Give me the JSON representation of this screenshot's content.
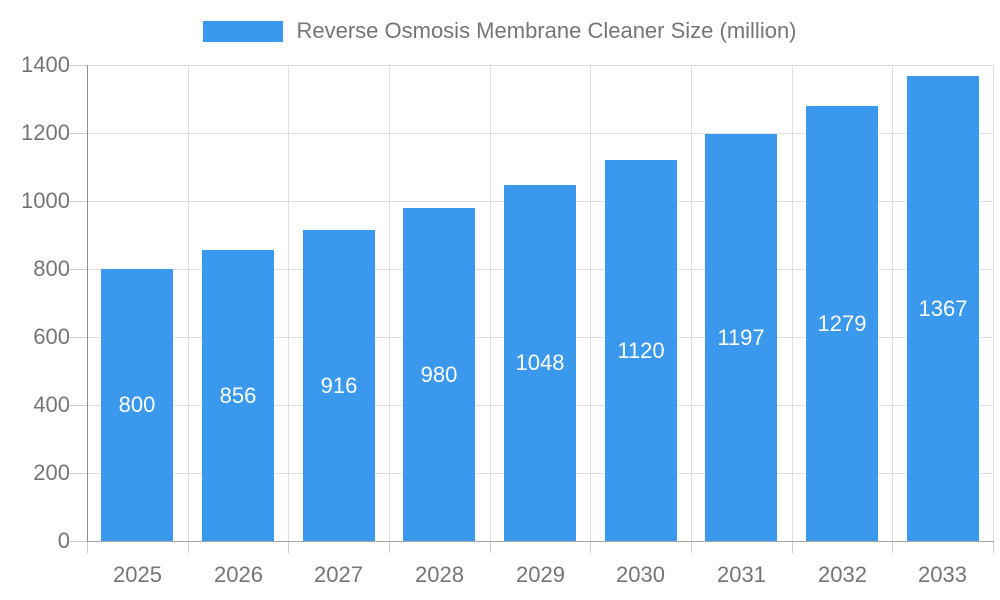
{
  "page": {
    "background": "#ffffff"
  },
  "legend": {
    "label": "Reverse Osmosis Membrane Cleaner Size (million)"
  },
  "chart_data": {
    "type": "bar",
    "title": "Reverse Osmosis Membrane Cleaner Size (million)",
    "categories": [
      "2025",
      "2026",
      "2027",
      "2028",
      "2029",
      "2030",
      "2031",
      "2032",
      "2033"
    ],
    "values": [
      800,
      856,
      916,
      980,
      1048,
      1120,
      1197,
      1279,
      1367
    ],
    "xlabel": "",
    "ylabel": "",
    "ylim": [
      0,
      1400
    ],
    "ytick_step": 200,
    "ytick_labels": [
      "0",
      "200",
      "400",
      "600",
      "800",
      "1000",
      "1200",
      "1400"
    ],
    "grid": true,
    "legend_position": "top-center",
    "value_labels_inside_bars": true,
    "colors": {
      "bar": "#3a99ec",
      "value_label": "#ffffff",
      "axis_text": "#757575",
      "grid_line": "#e0e0e0",
      "y_axis_line": "#8f8f8f",
      "x_axis_line": "#a6a6a6",
      "tick_line": "#cccccc"
    }
  }
}
